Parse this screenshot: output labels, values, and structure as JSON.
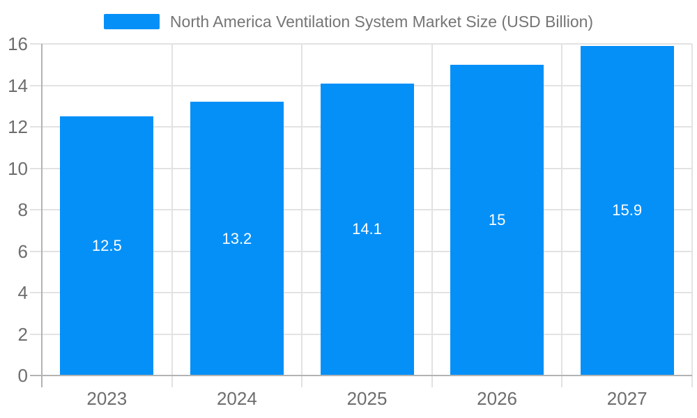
{
  "chart_data": {
    "type": "bar",
    "title": "North America Ventilation System Market Size (USD Billion)",
    "categories": [
      "2023",
      "2024",
      "2025",
      "2026",
      "2027"
    ],
    "values": [
      12.5,
      13.2,
      14.1,
      15,
      15.9
    ],
    "value_labels": [
      "12.5",
      "13.2",
      "14.1",
      "15",
      "15.9"
    ],
    "xlabel": "",
    "ylabel": "",
    "ylim": [
      0,
      16
    ],
    "yticks": [
      0,
      2,
      4,
      6,
      8,
      10,
      12,
      14,
      16
    ],
    "grid": true,
    "legend_position": "top",
    "colors": {
      "bar": "#0590F8",
      "grid": "#e2e2e2",
      "axis": "#b3b3b3",
      "tick_label": "#6d6d6d",
      "legend_label": "#757575",
      "value_label": "#ffffff",
      "background": "#ffffff"
    }
  }
}
